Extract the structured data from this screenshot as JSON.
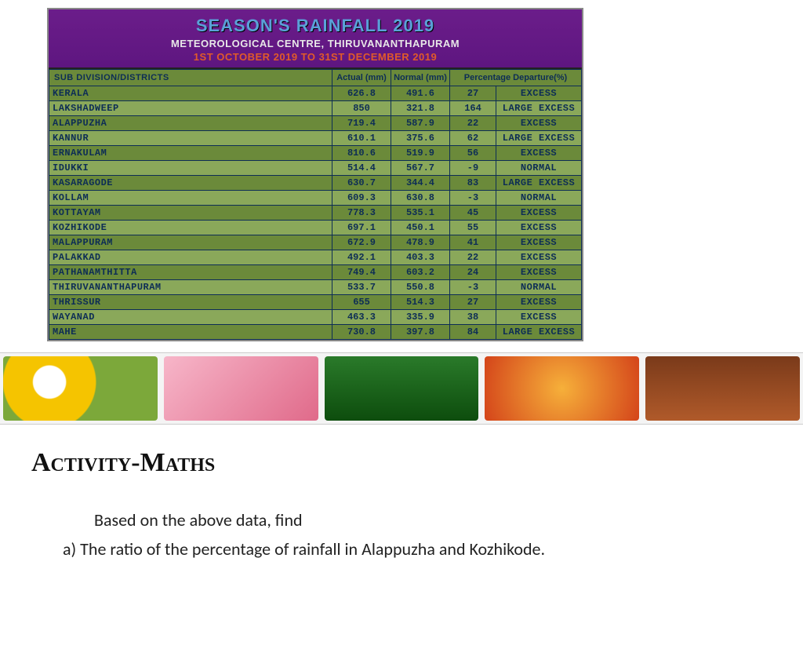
{
  "rain": {
    "title": "SEASON'S RAINFALL 2019",
    "subtitle": "METEOROLOGICAL CENTRE, THIRUVANANTHAPURAM",
    "daterange": "1ST OCTOBER 2019 TO 31ST DECEMBER 2019",
    "headers": {
      "c0": "SUB DIVISION/DISTRICTS",
      "c1": "Actual (mm)",
      "c2": "Normal (mm)",
      "c3": "Percentage Departure(%)",
      "c4": ""
    },
    "rows": [
      {
        "d": "KERALA",
        "a": "626.8",
        "n": "491.6",
        "p": "27",
        "r": "EXCESS"
      },
      {
        "d": "LAKSHADWEEP",
        "a": "850",
        "n": "321.8",
        "p": "164",
        "r": "LARGE EXCESS"
      },
      {
        "d": "ALAPPUZHA",
        "a": "719.4",
        "n": "587.9",
        "p": "22",
        "r": "EXCESS"
      },
      {
        "d": "KANNUR",
        "a": "610.1",
        "n": "375.6",
        "p": "62",
        "r": "LARGE EXCESS"
      },
      {
        "d": "ERNAKULAM",
        "a": "810.6",
        "n": "519.9",
        "p": "56",
        "r": "EXCESS"
      },
      {
        "d": "IDUKKI",
        "a": "514.4",
        "n": "567.7",
        "p": "-9",
        "r": "NORMAL"
      },
      {
        "d": "KASARAGODE",
        "a": "630.7",
        "n": "344.4",
        "p": "83",
        "r": "LARGE EXCESS"
      },
      {
        "d": "KOLLAM",
        "a": "609.3",
        "n": "630.8",
        "p": "-3",
        "r": "NORMAL"
      },
      {
        "d": "KOTTAYAM",
        "a": "778.3",
        "n": "535.1",
        "p": "45",
        "r": "EXCESS"
      },
      {
        "d": "KOZHIKODE",
        "a": "697.1",
        "n": "450.1",
        "p": "55",
        "r": "EXCESS"
      },
      {
        "d": "MALAPPURAM",
        "a": "672.9",
        "n": "478.9",
        "p": "41",
        "r": "EXCESS"
      },
      {
        "d": "PALAKKAD",
        "a": "492.1",
        "n": "403.3",
        "p": "22",
        "r": "EXCESS"
      },
      {
        "d": "PATHANAMTHITTA",
        "a": "749.4",
        "n": "603.2",
        "p": "24",
        "r": "EXCESS"
      },
      {
        "d": "THIRUVANANTHAPURAM",
        "a": "533.7",
        "n": "550.8",
        "p": "-3",
        "r": "NORMAL"
      },
      {
        "d": "THRISSUR",
        "a": "655",
        "n": "514.3",
        "p": "27",
        "r": "EXCESS"
      },
      {
        "d": "WAYANAD",
        "a": "463.3",
        "n": "335.9",
        "p": "38",
        "r": "EXCESS"
      },
      {
        "d": "MAHE",
        "a": "730.8",
        "n": "397.8",
        "p": "84",
        "r": "LARGE EXCESS"
      }
    ]
  },
  "activity": {
    "heading": "Activity-Maths",
    "prompt": "Based on the above data, find",
    "qa": "a)  The ratio of the percentage of rainfall in Alappuzha and Kozhikode."
  },
  "colors": {
    "header_bg": "#6a0dad",
    "row_a": "#6b8a3a",
    "row_b": "#8aa85a"
  }
}
